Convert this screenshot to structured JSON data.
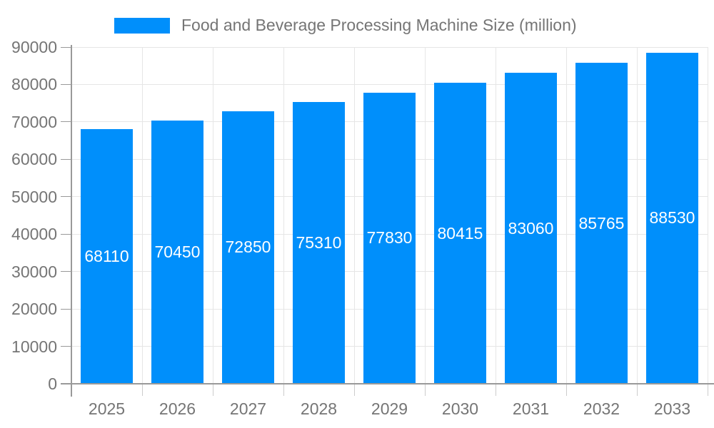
{
  "colors": {
    "bar": "#008ffb",
    "grid": "#e6e6e6",
    "axis": "#999999",
    "tick_minor": "#cccccc",
    "text": "#757575",
    "value_label": "#ffffff",
    "background": "#ffffff"
  },
  "chart_data": {
    "type": "bar",
    "title": "Food and Beverage Processing Machine Size (million)",
    "categories": [
      "2025",
      "2026",
      "2027",
      "2028",
      "2029",
      "2030",
      "2031",
      "2032",
      "2033"
    ],
    "values": [
      68110,
      70450,
      72850,
      75310,
      77830,
      80415,
      83060,
      85765,
      88530
    ],
    "series": [
      {
        "name": "Food and Beverage Processing Machine Size (million)",
        "values": [
          68110,
          70450,
          72850,
          75310,
          77830,
          80415,
          83060,
          85765,
          88530
        ]
      }
    ],
    "xlabel": "",
    "ylabel": "",
    "ylim": [
      0,
      90000
    ],
    "y_ticks": [
      0,
      10000,
      20000,
      30000,
      40000,
      50000,
      60000,
      70000,
      80000,
      90000
    ],
    "grid": "horizontal-and-vertical",
    "legend_position": "top",
    "value_label_style": "white, centered inside bars"
  }
}
